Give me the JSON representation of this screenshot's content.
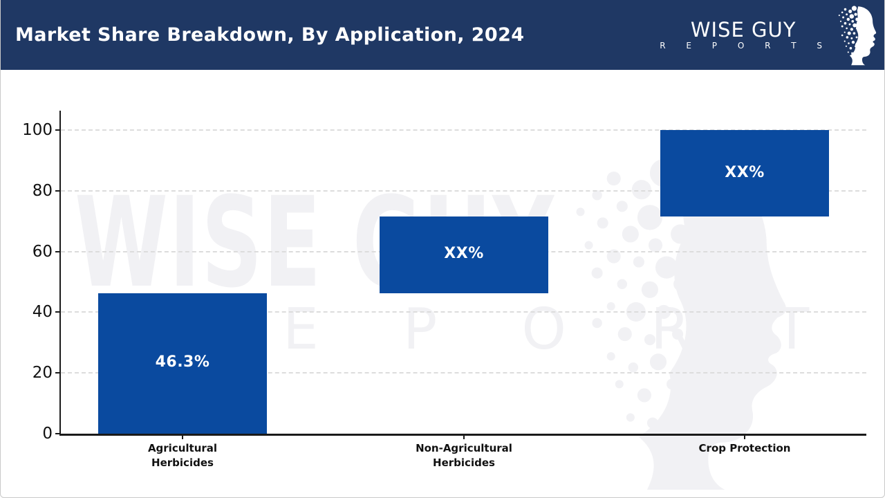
{
  "header": {
    "title": "Market Share Breakdown, By Application, 2024",
    "bg_color": "#1f3864",
    "logo": {
      "line1": "WISE GUY",
      "line2": "R E P O R T S"
    }
  },
  "watermark": {
    "line1": "WISE GUY",
    "line2": "R E P O R T S"
  },
  "chart_data": {
    "type": "bar",
    "subtype": "floating-waterfall",
    "title": "Market Share Breakdown, By Application, 2024",
    "categories": [
      "Agricultural Herbicides",
      "Non-Agricultural Herbicides",
      "Crop Protection"
    ],
    "segments": [
      {
        "category": "Agricultural Herbicides",
        "category_lines": "Agricultural\nHerbicides",
        "start": 0,
        "end": 46.3,
        "label": "46.3%"
      },
      {
        "category": "Non-Agricultural Herbicides",
        "category_lines": "Non-Agricultural\nHerbicides",
        "start": 46.3,
        "end": 71.5,
        "label": "XX%"
      },
      {
        "category": "Crop Protection",
        "category_lines": "Crop Protection",
        "start": 71.5,
        "end": 100,
        "label": "XX%"
      }
    ],
    "bar_color": "#0a4a9f",
    "xlabel": "",
    "ylabel": "",
    "ylim": [
      0,
      100
    ],
    "yticks": [
      0,
      20,
      40,
      60,
      80,
      100
    ],
    "grid": "horizontal-dashed",
    "legend": "none"
  }
}
